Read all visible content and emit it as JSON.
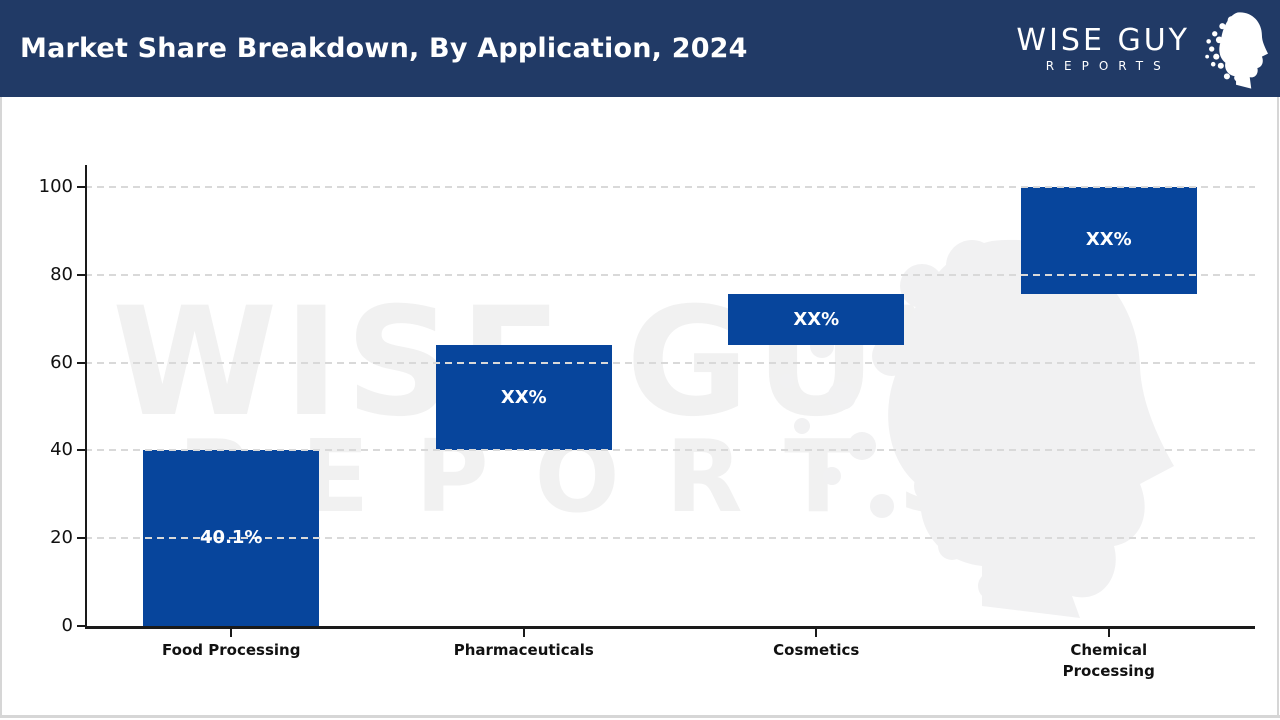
{
  "header": {
    "title": "Market Share Breakdown, By Application, 2024",
    "logo_line1": "WISE GUY",
    "logo_line2": "REPORTS"
  },
  "watermark": {
    "line1": "WISE GUY",
    "line2": "REPORTS",
    "face_icon": "dotted-head-profile"
  },
  "colors": {
    "header_navy": "#213A66",
    "bar_blue": "#07459C",
    "grid_gray": "#D9D9D9",
    "axis_black": "#1A1A1A",
    "watermark_gray": "#F1F1F1",
    "label_white": "#FFFFFF",
    "frame_gray": "#D6D6D6"
  },
  "chart_data": {
    "type": "bar",
    "variant": "waterfall",
    "title": "Market Share Breakdown, By Application, 2024",
    "categories": [
      "Food Processing",
      "Pharmaceuticals",
      "Cosmetics",
      "Chemical Processing"
    ],
    "category_display": [
      "Food Processing",
      "Pharmaceuticals",
      "Cosmetics",
      "Chemical\nProcessing"
    ],
    "values": [
      40.1,
      23.8,
      11.8,
      24.3
    ],
    "cumulative_start": [
      0,
      40.1,
      63.9,
      75.7
    ],
    "cumulative_end": [
      40.1,
      63.9,
      75.7,
      100
    ],
    "bar_labels": [
      "40.1%",
      "XX%",
      "XX%",
      "XX%"
    ],
    "xlabel": "",
    "ylabel": "",
    "ylim": [
      0,
      100
    ],
    "yticks": [
      0,
      20,
      40,
      60,
      80,
      100
    ],
    "grid": "horizontal-dashed",
    "legend": "none"
  }
}
